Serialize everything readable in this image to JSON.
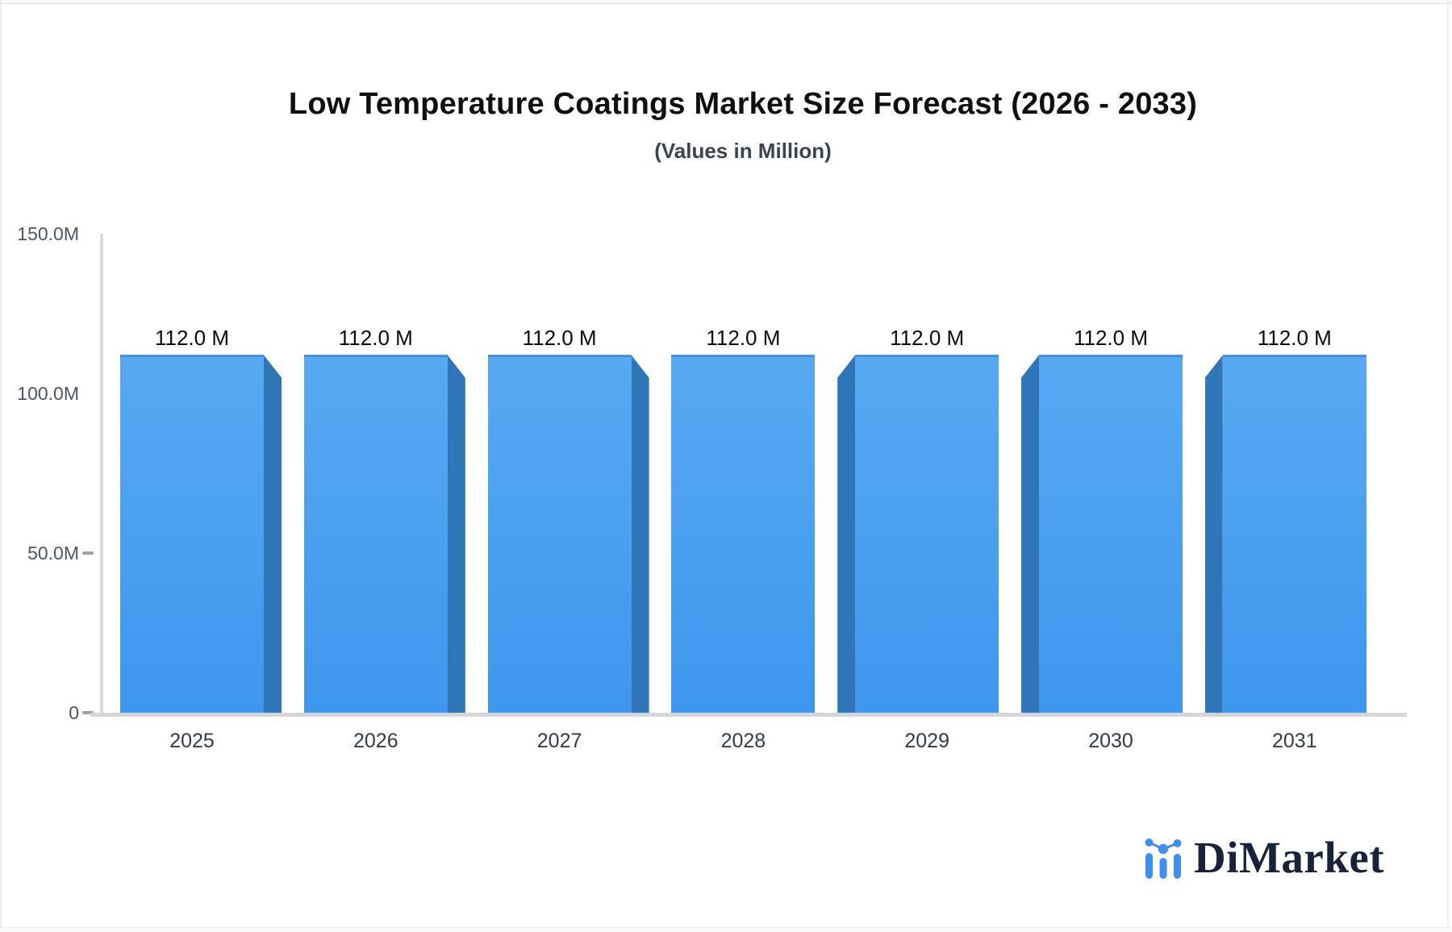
{
  "header": {
    "title": "Low Temperature Coatings Market Size Forecast (2026 - 2033)",
    "subtitle": "(Values in Million)"
  },
  "chart_data": {
    "type": "bar",
    "title": "Low Temperature Coatings Market Size Forecast (2026 - 2033)",
    "subtitle": "(Values in Million)",
    "unit": "Million",
    "categories": [
      "2025",
      "2026",
      "2027",
      "2028",
      "2029",
      "2030",
      "2031"
    ],
    "values": [
      112,
      112,
      112,
      112,
      112,
      112,
      112
    ],
    "value_labels": [
      "112.0 M",
      "112.0 M",
      "112.0 M",
      "112.0 M",
      "112.0 M",
      "112.0 M",
      "112.0 M"
    ],
    "xlabel": "",
    "ylabel": "",
    "ylim": [
      0,
      150
    ],
    "y_ticks": [
      {
        "value": 150,
        "label": "150.0M",
        "dash": false
      },
      {
        "value": 100,
        "label": "100.0M",
        "dash": false
      },
      {
        "value": 50,
        "label": "50.0M",
        "dash": true
      },
      {
        "value": 0,
        "label": "0",
        "dash": true
      }
    ],
    "grid": false,
    "legend": false,
    "bar_style_3d": true,
    "style": {
      "bar_face_top": "#57a9f1",
      "bar_face_bottom": "#3e97ee",
      "bar_top_edge": "#4190d8",
      "bar_side": "#2e76b8",
      "axis_color": "#dadbdf",
      "baseline_color": "#d3d6da",
      "tick_color": "#9aa1ab"
    }
  },
  "logo": {
    "text": "DiMarket",
    "icon": "bar-chart-logo-icon",
    "icon_color": "#3f8ef6",
    "text_color": "#16233a"
  }
}
